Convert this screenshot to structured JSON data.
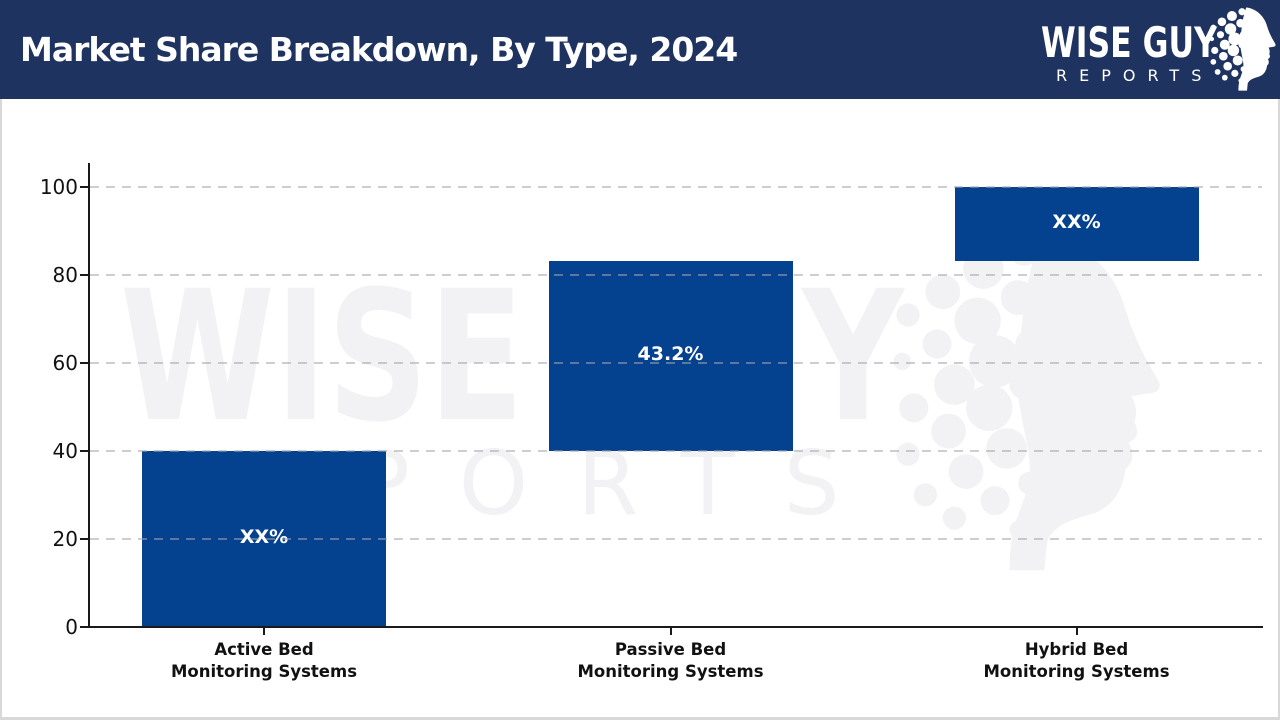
{
  "header": {
    "title": "Market Share Breakdown, By Type, 2024",
    "logo": {
      "name_line": "WISE GUY",
      "sub_line": "REPORTS"
    }
  },
  "watermark": {
    "name_line": "WISE GUY",
    "sub_line": "REPORTS"
  },
  "colors": {
    "header_bg": "#1f3361",
    "bar": "#04418f",
    "bar_label_text": "#ffffff",
    "grid": "#c8c8cd",
    "axis": "#1a1a1a",
    "watermark": "#f2f2f4"
  },
  "chart_data": {
    "type": "bar",
    "subtype": "waterfall",
    "title": "Market Share Breakdown, By Type, 2024",
    "categories": [
      [
        "Active Bed",
        "Monitoring Systems"
      ],
      [
        "Passive Bed",
        "Monitoring Systems"
      ],
      [
        "Hybrid Bed",
        "Monitoring Systems"
      ]
    ],
    "bars": [
      {
        "category": "Active Bed Monitoring Systems",
        "start": 0,
        "end": 40,
        "label": "XX%"
      },
      {
        "category": "Passive Bed Monitoring Systems",
        "start": 40,
        "end": 83.2,
        "label": "43.2%"
      },
      {
        "category": "Hybrid Bed Monitoring Systems",
        "start": 83.2,
        "end": 100,
        "label": "XX%"
      }
    ],
    "yticks": [
      0,
      20,
      40,
      60,
      80,
      100
    ],
    "ylim": [
      0,
      105.5
    ],
    "xlabel": "",
    "ylabel": "",
    "grid": "horizontal-dashed",
    "legend": "none",
    "bar_color": "#04418f"
  }
}
